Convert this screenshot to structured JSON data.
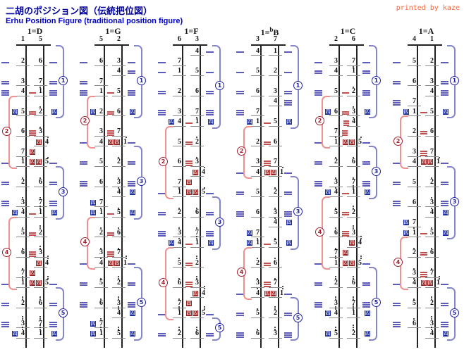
{
  "header": {
    "title_jp": "二胡のポジション図（伝統把位図）",
    "title_en": "Erhu Position Figure (traditional position figure)",
    "credit": "printed by kaze"
  },
  "palette": {
    "blue_marker": "#5c5cb8",
    "red_marker": "#c05050",
    "blue_box": "#1a2a99",
    "red_box": "#992222",
    "bracket_blue": "#8585cc",
    "bracket_red": "#f09090",
    "circle_blue": "#2020a0",
    "circle_red": "#a02030",
    "string": "#222222",
    "tick": "#8a8a8a",
    "note": "#111111",
    "title_jp": "#000099",
    "title_en": "#0000cc",
    "credit": "#ff6633"
  },
  "finger_names": {
    "1": "一",
    "2": "二",
    "3": "三",
    "4": "四"
  },
  "columns": [
    {
      "key_prefix": "1=",
      "key_sup": "",
      "key_note": "D",
      "open_left": "1",
      "open_right": "5",
      "rows": [
        {
          "st": 2,
          "L": "2",
          "R": "6",
          "oL": 1,
          "oR": 1
        },
        {
          "st": 4,
          "L": "3",
          "R": "7",
          "oL": 2,
          "oR": 2
        },
        {
          "st": 5,
          "L": "4",
          "R": "1'",
          "oL": 3,
          "oR": 3,
          "mL": 1,
          "mR": 1
        },
        {
          "st": 7,
          "L": "5",
          "R": "2'",
          "oL": 4,
          "oR": 4,
          "mL": 2,
          "mR": 2
        },
        {
          "st": 9,
          "L": "6",
          "R": "3'",
          "mL": 3,
          "mR": 3
        },
        {
          "st": 10,
          "R": "4'",
          "mR": 4
        },
        {
          "st": 11,
          "L": "7",
          "mL": 4
        },
        {
          "st": 12,
          "L": "1'",
          "R": "5'",
          "oL": 1,
          "oR": 1,
          "mL": 4,
          "mR": 4
        },
        {
          "st": 14,
          "L": "2'",
          "R": "6'",
          "oL": 2,
          "oR": 2
        },
        {
          "st": 16,
          "L": "3'",
          "R": "7'",
          "oL": 3,
          "oR": 3
        },
        {
          "st": 17,
          "L": "4'",
          "R": "1''",
          "oL": 4,
          "oR": 4,
          "mL": 1,
          "mR": 1
        },
        {
          "st": 19,
          "L": "5'",
          "R": "2''",
          "mL": 2,
          "mR": 2
        },
        {
          "st": 21,
          "L": "6'",
          "R": "3''",
          "mL": 3,
          "mR": 3
        },
        {
          "st": 22,
          "R": "4''",
          "mR": 4
        },
        {
          "st": 23,
          "L": "7'",
          "mL": 4
        },
        {
          "st": 24,
          "L": "1''",
          "R": "5''",
          "oL": 1,
          "oR": 1,
          "mL": 4,
          "mR": 4
        },
        {
          "st": 26,
          "L": "2''",
          "R": "6''",
          "oL": 2,
          "oR": 2
        },
        {
          "st": 28,
          "L": "3''",
          "R": "7''",
          "oL": 3,
          "oR": 3
        },
        {
          "st": 29,
          "L": "4''",
          "R": "1'''",
          "oL": 4,
          "oR": 4
        }
      ],
      "brackets": [
        {
          "n": "1",
          "side": "R",
          "from": 0,
          "to": 7
        },
        {
          "n": "2",
          "side": "L",
          "from": 5,
          "to": 12
        },
        {
          "n": "3",
          "side": "R",
          "from": 12,
          "to": 17
        },
        {
          "n": "4",
          "side": "L",
          "from": 17,
          "to": 24
        },
        {
          "n": "5",
          "side": "R",
          "from": 24,
          "to": 29
        }
      ]
    },
    {
      "key_prefix": "1=",
      "key_sup": "",
      "key_note": "G",
      "open_left": "5",
      "open_right": "2",
      "rows": [
        {
          "st": 2,
          "L": "6",
          "R": "3",
          "oL": 1,
          "oR": 1
        },
        {
          "st": 3,
          "R": "4",
          "oR": 2
        },
        {
          "st": 4,
          "L": "7",
          "oL": 2
        },
        {
          "st": 5,
          "L": "1",
          "R": "5",
          "oL": 3,
          "oR": 3,
          "mL": 1,
          "mR": 1
        },
        {
          "st": 7,
          "L": "2",
          "R": "6",
          "oL": 4,
          "oR": 4,
          "mL": 2,
          "mR": 2
        },
        {
          "st": 9,
          "L": "3",
          "R": "7",
          "mL": 3,
          "mR": 3
        },
        {
          "st": 10,
          "L": "4",
          "R": "1'",
          "oL": 1,
          "oR": 1,
          "mL": 4,
          "mR": 4
        },
        {
          "st": 12,
          "L": "5",
          "R": "2'",
          "oL": 2,
          "oR": 2
        },
        {
          "st": 14,
          "L": "6",
          "R": "3'",
          "oL": 3,
          "oR": 3
        },
        {
          "st": 15,
          "R": "4'",
          "oR": 4
        },
        {
          "st": 16,
          "L": "7",
          "oL": 4
        },
        {
          "st": 17,
          "L": "1'",
          "R": "5'",
          "oL": 4,
          "oR": 4,
          "mL": 1,
          "mR": 1
        },
        {
          "st": 19,
          "L": "2'",
          "R": "6'",
          "mL": 2,
          "mR": 2
        },
        {
          "st": 21,
          "L": "3'",
          "R": "7'",
          "mL": 3,
          "mR": 3
        },
        {
          "st": 22,
          "L": "4'",
          "R": "1''",
          "oL": 1,
          "oR": 1,
          "mL": 4,
          "mR": 4
        },
        {
          "st": 24,
          "L": "5'",
          "R": "2''",
          "oL": 2,
          "oR": 2
        },
        {
          "st": 26,
          "L": "6'",
          "R": "3''",
          "oL": 3,
          "oR": 3
        },
        {
          "st": 27,
          "R": "4''",
          "oR": 4
        },
        {
          "st": 28,
          "L": "7'",
          "oL": 4
        },
        {
          "st": 29,
          "L": "1''",
          "R": "5''",
          "oL": 4,
          "oR": 4
        }
      ],
      "brackets": [
        {
          "n": "1",
          "side": "R",
          "from": 0,
          "to": 7
        },
        {
          "n": "2",
          "side": "L",
          "from": 5,
          "to": 10
        },
        {
          "n": "3",
          "side": "R",
          "from": 10,
          "to": 17
        },
        {
          "n": "4",
          "side": "L",
          "from": 17,
          "to": 22
        },
        {
          "n": "5",
          "side": "R",
          "from": 22,
          "to": 29
        }
      ]
    },
    {
      "key_prefix": "1=",
      "key_sup": "",
      "key_note": "F",
      "open_left": "6",
      "open_right": "3",
      "rows": [
        {
          "st": 1,
          "R": "4",
          "oR": 1
        },
        {
          "st": 2,
          "L": "7",
          "oL": 1
        },
        {
          "st": 3,
          "L": "1",
          "R": "5",
          "oL": 1,
          "oR": 1
        },
        {
          "st": 5,
          "L": "2",
          "R": "6",
          "oL": 2,
          "oR": 2
        },
        {
          "st": 7,
          "L": "3",
          "R": "7",
          "oL": 3,
          "oR": 3
        },
        {
          "st": 8,
          "L": "4",
          "R": "1'",
          "oL": 4,
          "oR": 4,
          "mL": 1,
          "mR": 1
        },
        {
          "st": 10,
          "L": "5",
          "R": "2'",
          "mL": 2,
          "mR": 2
        },
        {
          "st": 12,
          "L": "6",
          "R": "3'",
          "mL": 3,
          "mR": 3
        },
        {
          "st": 13,
          "R": "4'",
          "mR": 4
        },
        {
          "st": 14,
          "L": "7",
          "mL": 4
        },
        {
          "st": 15,
          "L": "1'",
          "R": "5'",
          "oL": 1,
          "oR": 1,
          "mL": 4,
          "mR": 4
        },
        {
          "st": 17,
          "L": "2'",
          "R": "6'",
          "oL": 2,
          "oR": 2
        },
        {
          "st": 19,
          "L": "3'",
          "R": "7'",
          "oL": 3,
          "oR": 3
        },
        {
          "st": 20,
          "L": "4'",
          "R": "1''",
          "oL": 4,
          "oR": 4,
          "mL": 1,
          "mR": 1
        },
        {
          "st": 22,
          "L": "5'",
          "R": "2''",
          "mL": 2,
          "mR": 2
        },
        {
          "st": 24,
          "L": "6'",
          "R": "3''",
          "mL": 3,
          "mR": 3
        },
        {
          "st": 25,
          "R": "4''",
          "mR": 4
        },
        {
          "st": 26,
          "L": "7'",
          "mL": 4
        },
        {
          "st": 27,
          "L": "1''",
          "R": "5''",
          "oL": 1,
          "oR": 1,
          "mL": 4,
          "mR": 4
        },
        {
          "st": 29,
          "L": "2''",
          "R": "6''",
          "oL": 2,
          "oR": 2
        }
      ],
      "brackets": [
        {
          "n": "1",
          "side": "R",
          "from": 0,
          "to": 8
        },
        {
          "n": "2",
          "side": "L",
          "from": 8,
          "to": 15
        },
        {
          "n": "3",
          "side": "R",
          "from": 15,
          "to": 20
        },
        {
          "n": "4",
          "side": "L",
          "from": 20,
          "to": 27
        },
        {
          "n": "5",
          "side": "R",
          "from": 27,
          "to": 29
        }
      ]
    },
    {
      "key_prefix": "1=",
      "key_sup": "b",
      "key_note": "B",
      "open_left": "3",
      "open_right": "7",
      "rows": [
        {
          "st": 1,
          "L": "4",
          "R": "1",
          "oL": 1,
          "oR": 1
        },
        {
          "st": 3,
          "L": "5",
          "R": "2",
          "oL": 1,
          "oR": 1
        },
        {
          "st": 5,
          "L": "6",
          "R": "3",
          "oL": 2,
          "oR": 2
        },
        {
          "st": 6,
          "R": "4",
          "oR": 3
        },
        {
          "st": 7,
          "L": "7",
          "oL": 3
        },
        {
          "st": 8,
          "L": "1",
          "R": "5",
          "oL": 4,
          "oR": 4,
          "mL": 1,
          "mR": 1
        },
        {
          "st": 10,
          "L": "2",
          "R": "6",
          "mL": 2,
          "mR": 2
        },
        {
          "st": 12,
          "L": "3",
          "R": "7",
          "mL": 3,
          "mR": 3
        },
        {
          "st": 13,
          "L": "4",
          "R": "1'",
          "oL": 1,
          "oR": 1,
          "mL": 4,
          "mR": 4
        },
        {
          "st": 15,
          "L": "5",
          "R": "2'",
          "oL": 2,
          "oR": 2
        },
        {
          "st": 17,
          "L": "6",
          "R": "3'",
          "oL": 3,
          "oR": 3
        },
        {
          "st": 18,
          "R": "4'",
          "oR": 4
        },
        {
          "st": 19,
          "L": "7",
          "oL": 4
        },
        {
          "st": 20,
          "L": "1'",
          "R": "5'",
          "oL": 4,
          "oR": 4,
          "mL": 1,
          "mR": 1
        },
        {
          "st": 22,
          "L": "2'",
          "R": "6'",
          "mL": 2,
          "mR": 2
        },
        {
          "st": 24,
          "L": "3'",
          "R": "7'",
          "mL": 3,
          "mR": 3
        },
        {
          "st": 25,
          "L": "4'",
          "R": "1''",
          "oL": 1,
          "oR": 1,
          "mL": 4,
          "mR": 4
        },
        {
          "st": 27,
          "L": "5'",
          "R": "2''",
          "oL": 2,
          "oR": 2
        },
        {
          "st": 29,
          "L": "6'",
          "R": "3''",
          "oL": 3,
          "oR": 3
        }
      ],
      "brackets": [
        {
          "n": "1",
          "side": "R",
          "from": 0,
          "to": 8
        },
        {
          "n": "2",
          "side": "L",
          "from": 8,
          "to": 13
        },
        {
          "n": "3",
          "side": "R",
          "from": 13,
          "to": 20
        },
        {
          "n": "4",
          "side": "L",
          "from": 20,
          "to": 25
        },
        {
          "n": "5",
          "side": "R",
          "from": 25,
          "to": 29
        }
      ]
    },
    {
      "key_prefix": "1=",
      "key_sup": "",
      "key_note": "C",
      "open_left": "2",
      "open_right": "6",
      "rows": [
        {
          "st": 2,
          "L": "3",
          "R": "7",
          "oL": 1,
          "oR": 1
        },
        {
          "st": 3,
          "L": "4",
          "R": "1'",
          "oL": 2,
          "oR": 2
        },
        {
          "st": 5,
          "L": "5",
          "R": "2'",
          "oL": 3,
          "oR": 3,
          "mL": 1,
          "mR": 1
        },
        {
          "st": 7,
          "L": "6",
          "R": "3'",
          "oL": 4,
          "oR": 4,
          "mL": 2,
          "mR": 2
        },
        {
          "st": 8,
          "R": "4'",
          "mR": 3
        },
        {
          "st": 9,
          "L": "7",
          "mL": 3
        },
        {
          "st": 10,
          "L": "1'",
          "R": "5'",
          "oL": 1,
          "oR": 1,
          "mL": 4,
          "mR": 4
        },
        {
          "st": 12,
          "L": "2'",
          "R": "6'",
          "oL": 2,
          "oR": 2
        },
        {
          "st": 14,
          "L": "3'",
          "R": "7'",
          "oL": 3,
          "oR": 3
        },
        {
          "st": 15,
          "L": "4'",
          "R": "1''",
          "oL": 4,
          "oR": 4,
          "mL": 1,
          "mR": 1
        },
        {
          "st": 17,
          "L": "5'",
          "R": "2''",
          "mL": 2,
          "mR": 2
        },
        {
          "st": 19,
          "L": "6'",
          "R": "3''",
          "mL": 3,
          "mR": 3
        },
        {
          "st": 20,
          "R": "4''",
          "mR": 4
        },
        {
          "st": 21,
          "L": "7'",
          "mL": 4
        },
        {
          "st": 22,
          "L": "1''",
          "R": "5''",
          "oL": 1,
          "oR": 1,
          "mL": 4,
          "mR": 4
        },
        {
          "st": 24,
          "L": "2''",
          "R": "6''",
          "oL": 2,
          "oR": 2
        },
        {
          "st": 26,
          "L": "3''",
          "R": "7''",
          "oL": 3,
          "oR": 3
        },
        {
          "st": 27,
          "L": "4''",
          "R": "1'''",
          "oL": 4,
          "oR": 4
        },
        {
          "st": 29,
          "L": "5''",
          "R": "2'''",
          "oL": 4,
          "oR": 4
        }
      ],
      "brackets": [
        {
          "n": "1",
          "side": "R",
          "from": 0,
          "to": 7
        },
        {
          "n": "2",
          "side": "L",
          "from": 5,
          "to": 10
        },
        {
          "n": "3",
          "side": "R",
          "from": 10,
          "to": 15
        },
        {
          "n": "4",
          "side": "L",
          "from": 15,
          "to": 22
        },
        {
          "n": "5",
          "side": "R",
          "from": 22,
          "to": 29
        }
      ]
    },
    {
      "key_prefix": "1=",
      "key_sup": "",
      "key_note": "A",
      "open_left": "4",
      "open_right": "1",
      "rows": [
        {
          "st": 2,
          "L": "5",
          "R": "2",
          "oL": 1,
          "oR": 1
        },
        {
          "st": 4,
          "L": "6",
          "R": "3",
          "oL": 2,
          "oR": 2
        },
        {
          "st": 5,
          "R": "4",
          "oR": 3
        },
        {
          "st": 6,
          "L": "7",
          "oL": 3
        },
        {
          "st": 7,
          "L": "1",
          "R": "5",
          "oL": 4,
          "oR": 4,
          "mL": 1,
          "mR": 1
        },
        {
          "st": 9,
          "L": "2",
          "R": "6",
          "mL": 2,
          "mR": 2
        },
        {
          "st": 11,
          "L": "3",
          "R": "7",
          "mL": 3,
          "mR": 3
        },
        {
          "st": 12,
          "L": "4",
          "R": "1'",
          "oL": 1,
          "oR": 1,
          "mL": 4,
          "mR": 4
        },
        {
          "st": 14,
          "L": "5",
          "R": "2'",
          "oL": 2,
          "oR": 2
        },
        {
          "st": 16,
          "L": "6",
          "R": "3'",
          "oL": 3,
          "oR": 3
        },
        {
          "st": 17,
          "R": "4'",
          "oR": 4
        },
        {
          "st": 18,
          "L": "7",
          "oL": 4
        },
        {
          "st": 19,
          "L": "1'",
          "R": "5'",
          "oL": 4,
          "oR": 4,
          "mL": 1,
          "mR": 1
        },
        {
          "st": 21,
          "L": "2'",
          "R": "6'",
          "mL": 2,
          "mR": 2
        },
        {
          "st": 23,
          "L": "3'",
          "R": "7'",
          "mL": 3,
          "mR": 3
        },
        {
          "st": 24,
          "L": "4'",
          "R": "1''",
          "oL": 1,
          "oR": 1,
          "mL": 4,
          "mR": 4
        },
        {
          "st": 26,
          "L": "5'",
          "R": "2''",
          "oL": 2,
          "oR": 2
        },
        {
          "st": 28,
          "L": "6'",
          "R": "3''",
          "oL": 3,
          "oR": 3
        },
        {
          "st": 29,
          "R": "4''",
          "oR": 4
        }
      ],
      "brackets": [
        {
          "n": "1",
          "side": "R",
          "from": 0,
          "to": 7
        },
        {
          "n": "2",
          "side": "L",
          "from": 7,
          "to": 12
        },
        {
          "n": "3",
          "side": "R",
          "from": 12,
          "to": 19
        },
        {
          "n": "4",
          "side": "L",
          "from": 19,
          "to": 24
        },
        {
          "n": "5",
          "side": "R",
          "from": 24,
          "to": 29
        }
      ]
    }
  ]
}
